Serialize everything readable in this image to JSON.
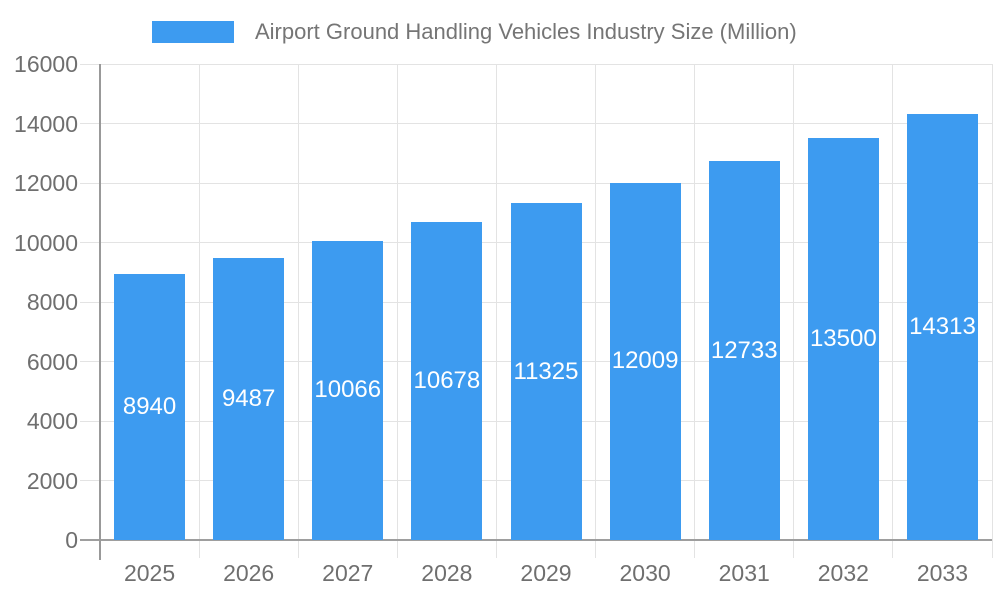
{
  "chart_data": {
    "type": "bar",
    "title": "Airport Ground Handling Vehicles Industry Size (Million)",
    "categories": [
      "2025",
      "2026",
      "2027",
      "2028",
      "2029",
      "2030",
      "2031",
      "2032",
      "2033"
    ],
    "values": [
      8940,
      9487,
      10066,
      10678,
      11325,
      12009,
      12733,
      13500,
      14313
    ],
    "series": [
      {
        "name": "Airport Ground Handling Vehicles Industry Size (Million)",
        "values": [
          8940,
          9487,
          10066,
          10678,
          11325,
          12009,
          12733,
          13500,
          14313
        ]
      }
    ],
    "xlabel": "",
    "ylabel": "",
    "ylim": [
      0,
      16000
    ],
    "yticks": [
      0,
      2000,
      4000,
      6000,
      8000,
      10000,
      12000,
      14000,
      16000
    ],
    "grid": true,
    "legend_position": "top-center",
    "value_label_position": "inside-center",
    "colors": {
      "bar": "#3D9BF0",
      "grid": "#e3e3e3",
      "axis": "#999999",
      "tick_text": "#6f6f6f",
      "legend_text": "#757575",
      "value_label_text": "#ffffff",
      "background": "#ffffff"
    }
  }
}
